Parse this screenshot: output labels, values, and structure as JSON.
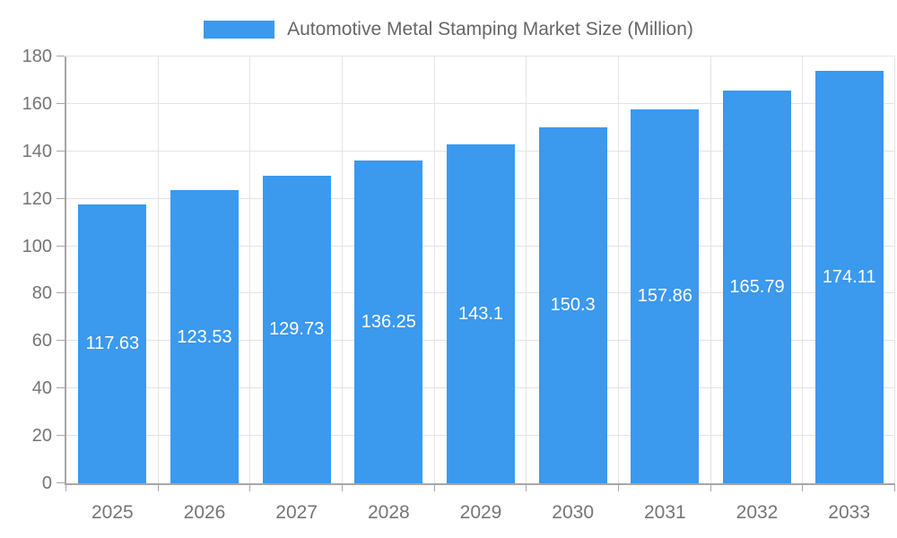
{
  "legend": {
    "label": "Automotive Metal Stamping Market Size (Million)"
  },
  "chart_data": {
    "type": "bar",
    "title": "Automotive Metal Stamping Market Size (Million)",
    "categories": [
      "2025",
      "2026",
      "2027",
      "2028",
      "2029",
      "2030",
      "2031",
      "2032",
      "2033"
    ],
    "values": [
      117.63,
      123.53,
      129.73,
      136.25,
      143.1,
      150.3,
      157.86,
      165.79,
      174.11
    ],
    "value_labels": [
      "117.63",
      "123.53",
      "129.73",
      "136.25",
      "143.1",
      "150.3",
      "157.86",
      "165.79",
      "174.11"
    ],
    "xlabel": "",
    "ylabel": "",
    "ylim": [
      0,
      180
    ],
    "ytick_step": 20,
    "ytick_labels": [
      "0",
      "20",
      "40",
      "60",
      "80",
      "100",
      "120",
      "140",
      "160",
      "180"
    ],
    "grid": "on",
    "legend_position": "top",
    "colors": {
      "bar": "#3b99ee",
      "grid": "#e3e3e3",
      "axis": "#a6a6a6",
      "tick": "#a6a6a6",
      "axis_label": "#757575",
      "legend_text": "#666666",
      "value_label": "#ffffff",
      "background": "#ffffff"
    }
  }
}
